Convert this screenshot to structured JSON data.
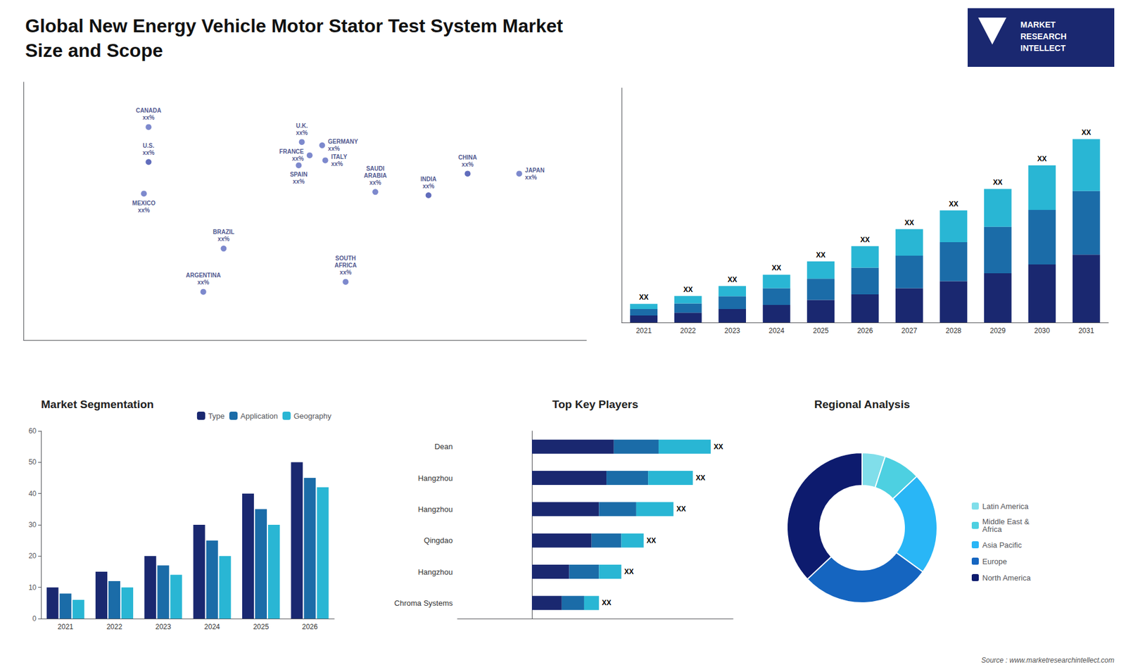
{
  "title": "Global New Energy Vehicle Motor Stator Test System Market\nSize and Scope",
  "annotations": [
    "MARKET\nRESEARCH\nINTELLECT",
    "Source : www.marketresearchintellect.com"
  ],
  "chart_data": [
    {
      "type": "scatter",
      "x": [
        -100,
        -100,
        -103,
        -52,
        -65,
        -2,
        3,
        -4,
        11,
        13,
        26,
        45,
        104,
        79,
        137
      ],
      "values": [
        42,
        63,
        23,
        -10,
        -36,
        54,
        46,
        40,
        52,
        43,
        -30,
        24,
        35,
        22,
        35
      ],
      "colors": [
        "#3949ab",
        "#5c6bc0",
        "#5c6bc0",
        "#5c6bc0",
        "#5c6bc0",
        "#5c6bc0",
        "#5c6bc0",
        "#5c6bc0",
        "#5c6bc0",
        "#5c6bc0",
        "#5c6bc0",
        "#5c6bc0",
        "#3949ab",
        "#3949ab",
        "#5c6bc0"
      ],
      "annotations": [
        "U.S.\nxx%",
        "CANADA\nxx%",
        "MEXICO\nxx%",
        "BRAZIL\nxx%",
        "ARGENTINA\nxx%",
        "U.K.\nxx%",
        "FRANCE\nxx%",
        "SPAIN\nxx%",
        "GERMANY\nxx%",
        "ITALY\nxx%",
        "SOUTH\nAFRICA\nxx%",
        "SAUDI\nARABIA\nxx%",
        "CHINA\nxx%",
        "INDIA\nxx%",
        "JAPAN\nxx%"
      ],
      "xlim": [
        -180,
        180
      ],
      "ylim": [
        -65,
        90
      ],
      "tick_labels": false,
      "grid": false
    },
    {
      "type": "bar",
      "stacked": true,
      "categories": [
        "2021",
        "2022",
        "2023",
        "2024",
        "2025",
        "2026",
        "2027",
        "2028",
        "2029",
        "2030",
        "2031"
      ],
      "series": [
        {
          "color": "#1a2870",
          "values": [
            0.3,
            0.42,
            0.58,
            0.76,
            0.97,
            1.21,
            1.48,
            1.78,
            2.12,
            2.5,
            2.92
          ]
        },
        {
          "color": "#1b6ca8",
          "values": [
            0.28,
            0.4,
            0.55,
            0.72,
            0.92,
            1.15,
            1.4,
            1.68,
            2.0,
            2.35,
            2.74
          ]
        },
        {
          "color": "#29b6d4",
          "values": [
            0.22,
            0.32,
            0.44,
            0.58,
            0.74,
            0.93,
            1.14,
            1.37,
            1.63,
            1.92,
            2.24
          ]
        }
      ],
      "annotations": [
        "XX",
        "XX",
        "XX",
        "XX",
        "XX",
        "XX",
        "XX",
        "XX",
        "XX",
        "XX",
        "XX"
      ],
      "ylim": [
        0,
        10.1
      ],
      "tick_labels": "x",
      "grid": false
    },
    {
      "type": "bar",
      "title": "Market Segmentation",
      "categories": [
        "2021",
        "2022",
        "2023",
        "2024",
        "2025",
        "2026"
      ],
      "series": [
        {
          "name": "Type",
          "color": "#1a2870",
          "values": [
            10,
            15,
            20,
            30,
            40,
            50
          ]
        },
        {
          "name": "Application",
          "color": "#1b6ca8",
          "values": [
            8,
            12,
            17,
            25,
            35,
            45
          ]
        },
        {
          "name": "Geography",
          "color": "#29b6d4",
          "values": [
            6,
            10,
            14,
            20,
            30,
            42
          ]
        }
      ],
      "ylim": [
        0,
        60
      ],
      "yticks": [
        0,
        10,
        20,
        30,
        40,
        50,
        60
      ],
      "legend": "upper right",
      "grid": false
    },
    {
      "type": "bar",
      "title": "Top Key Players",
      "orientation": "horizontal",
      "stacked": true,
      "categories": [
        "Dean",
        "Hangzhou",
        "Hangzhou",
        "Qingdao",
        "Hangzhou",
        "Chroma Systems"
      ],
      "series": [
        {
          "color": "#1a2870",
          "values": [
            5.5,
            5.0,
            4.5,
            4.0,
            2.5,
            2.0
          ]
        },
        {
          "color": "#1b6ca8",
          "values": [
            3.0,
            2.8,
            2.5,
            2.0,
            2.0,
            1.5
          ]
        },
        {
          "color": "#29b6d4",
          "values": [
            3.5,
            3.0,
            2.5,
            1.5,
            1.5,
            1.0
          ]
        }
      ],
      "annotations": [
        "XX",
        "XX",
        "XX",
        "XX",
        "XX",
        "XX"
      ],
      "xlim": [
        -5,
        13.5
      ],
      "tick_labels": "y",
      "grid": false
    },
    {
      "type": "pie",
      "title": "Regional Analysis",
      "categories": [
        "Latin America",
        "Middle East &\nAfrica",
        "Asia Pacific",
        "Europe",
        "North America"
      ],
      "values": [
        5,
        8,
        22,
        28,
        37
      ],
      "colors": [
        "#80deea",
        "#4dd0e1",
        "#29b6f6",
        "#1565c0",
        "#0d1b6e"
      ],
      "legend": "right"
    }
  ]
}
